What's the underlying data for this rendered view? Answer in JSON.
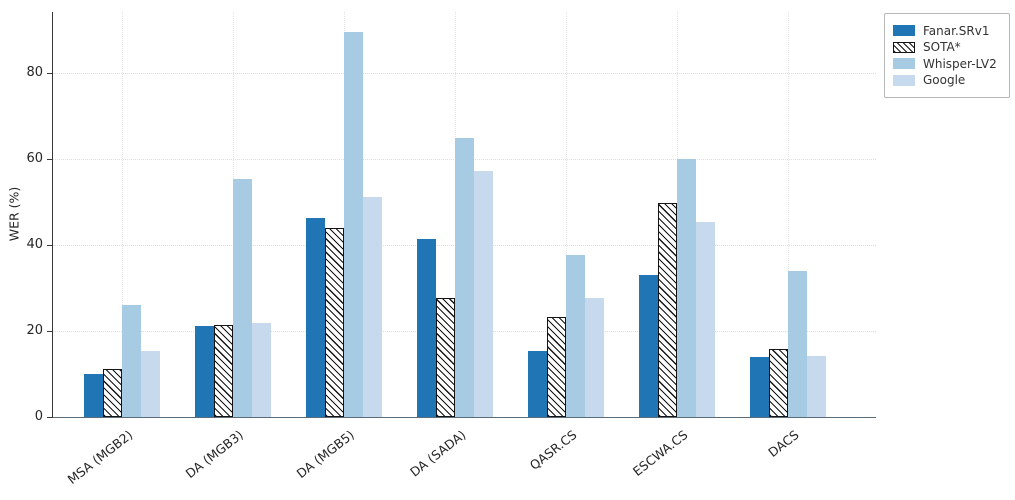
{
  "chart_data": {
    "type": "bar",
    "title": "",
    "xlabel": "",
    "ylabel": "WER (%)",
    "ylim": [
      0,
      94.3
    ],
    "yticks": [
      0,
      20,
      40,
      60,
      80
    ],
    "grid": "both-dotted",
    "legend_position": "outside-top-right",
    "categories": [
      "MSA (MGB2)",
      "DA (MGB3)",
      "DA (MGB5)",
      "DA (SADA)",
      "QASR.CS",
      "ESCWA.CS",
      "DACS"
    ],
    "series": [
      {
        "name": "Fanar.SRv1",
        "style": "solid",
        "color": "#2076b4",
        "values": [
          10.0,
          21.2,
          46.3,
          41.4,
          15.3,
          33.0,
          14.0
        ]
      },
      {
        "name": "SOTA*",
        "style": "hatched",
        "color": "#ffffff",
        "hatch_color": "#141414",
        "values": [
          11.2,
          21.4,
          44.0,
          27.8,
          23.4,
          49.9,
          15.9
        ]
      },
      {
        "name": "Whisper-LV2",
        "style": "solid",
        "color": "#a6cbe3",
        "values": [
          26.0,
          55.5,
          89.7,
          65.0,
          37.7,
          60.0,
          34.0
        ]
      },
      {
        "name": "Google",
        "style": "solid",
        "color": "#c7d9ec",
        "values": [
          15.3,
          22.0,
          51.2,
          57.3,
          27.8,
          45.5,
          14.2
        ]
      }
    ]
  }
}
